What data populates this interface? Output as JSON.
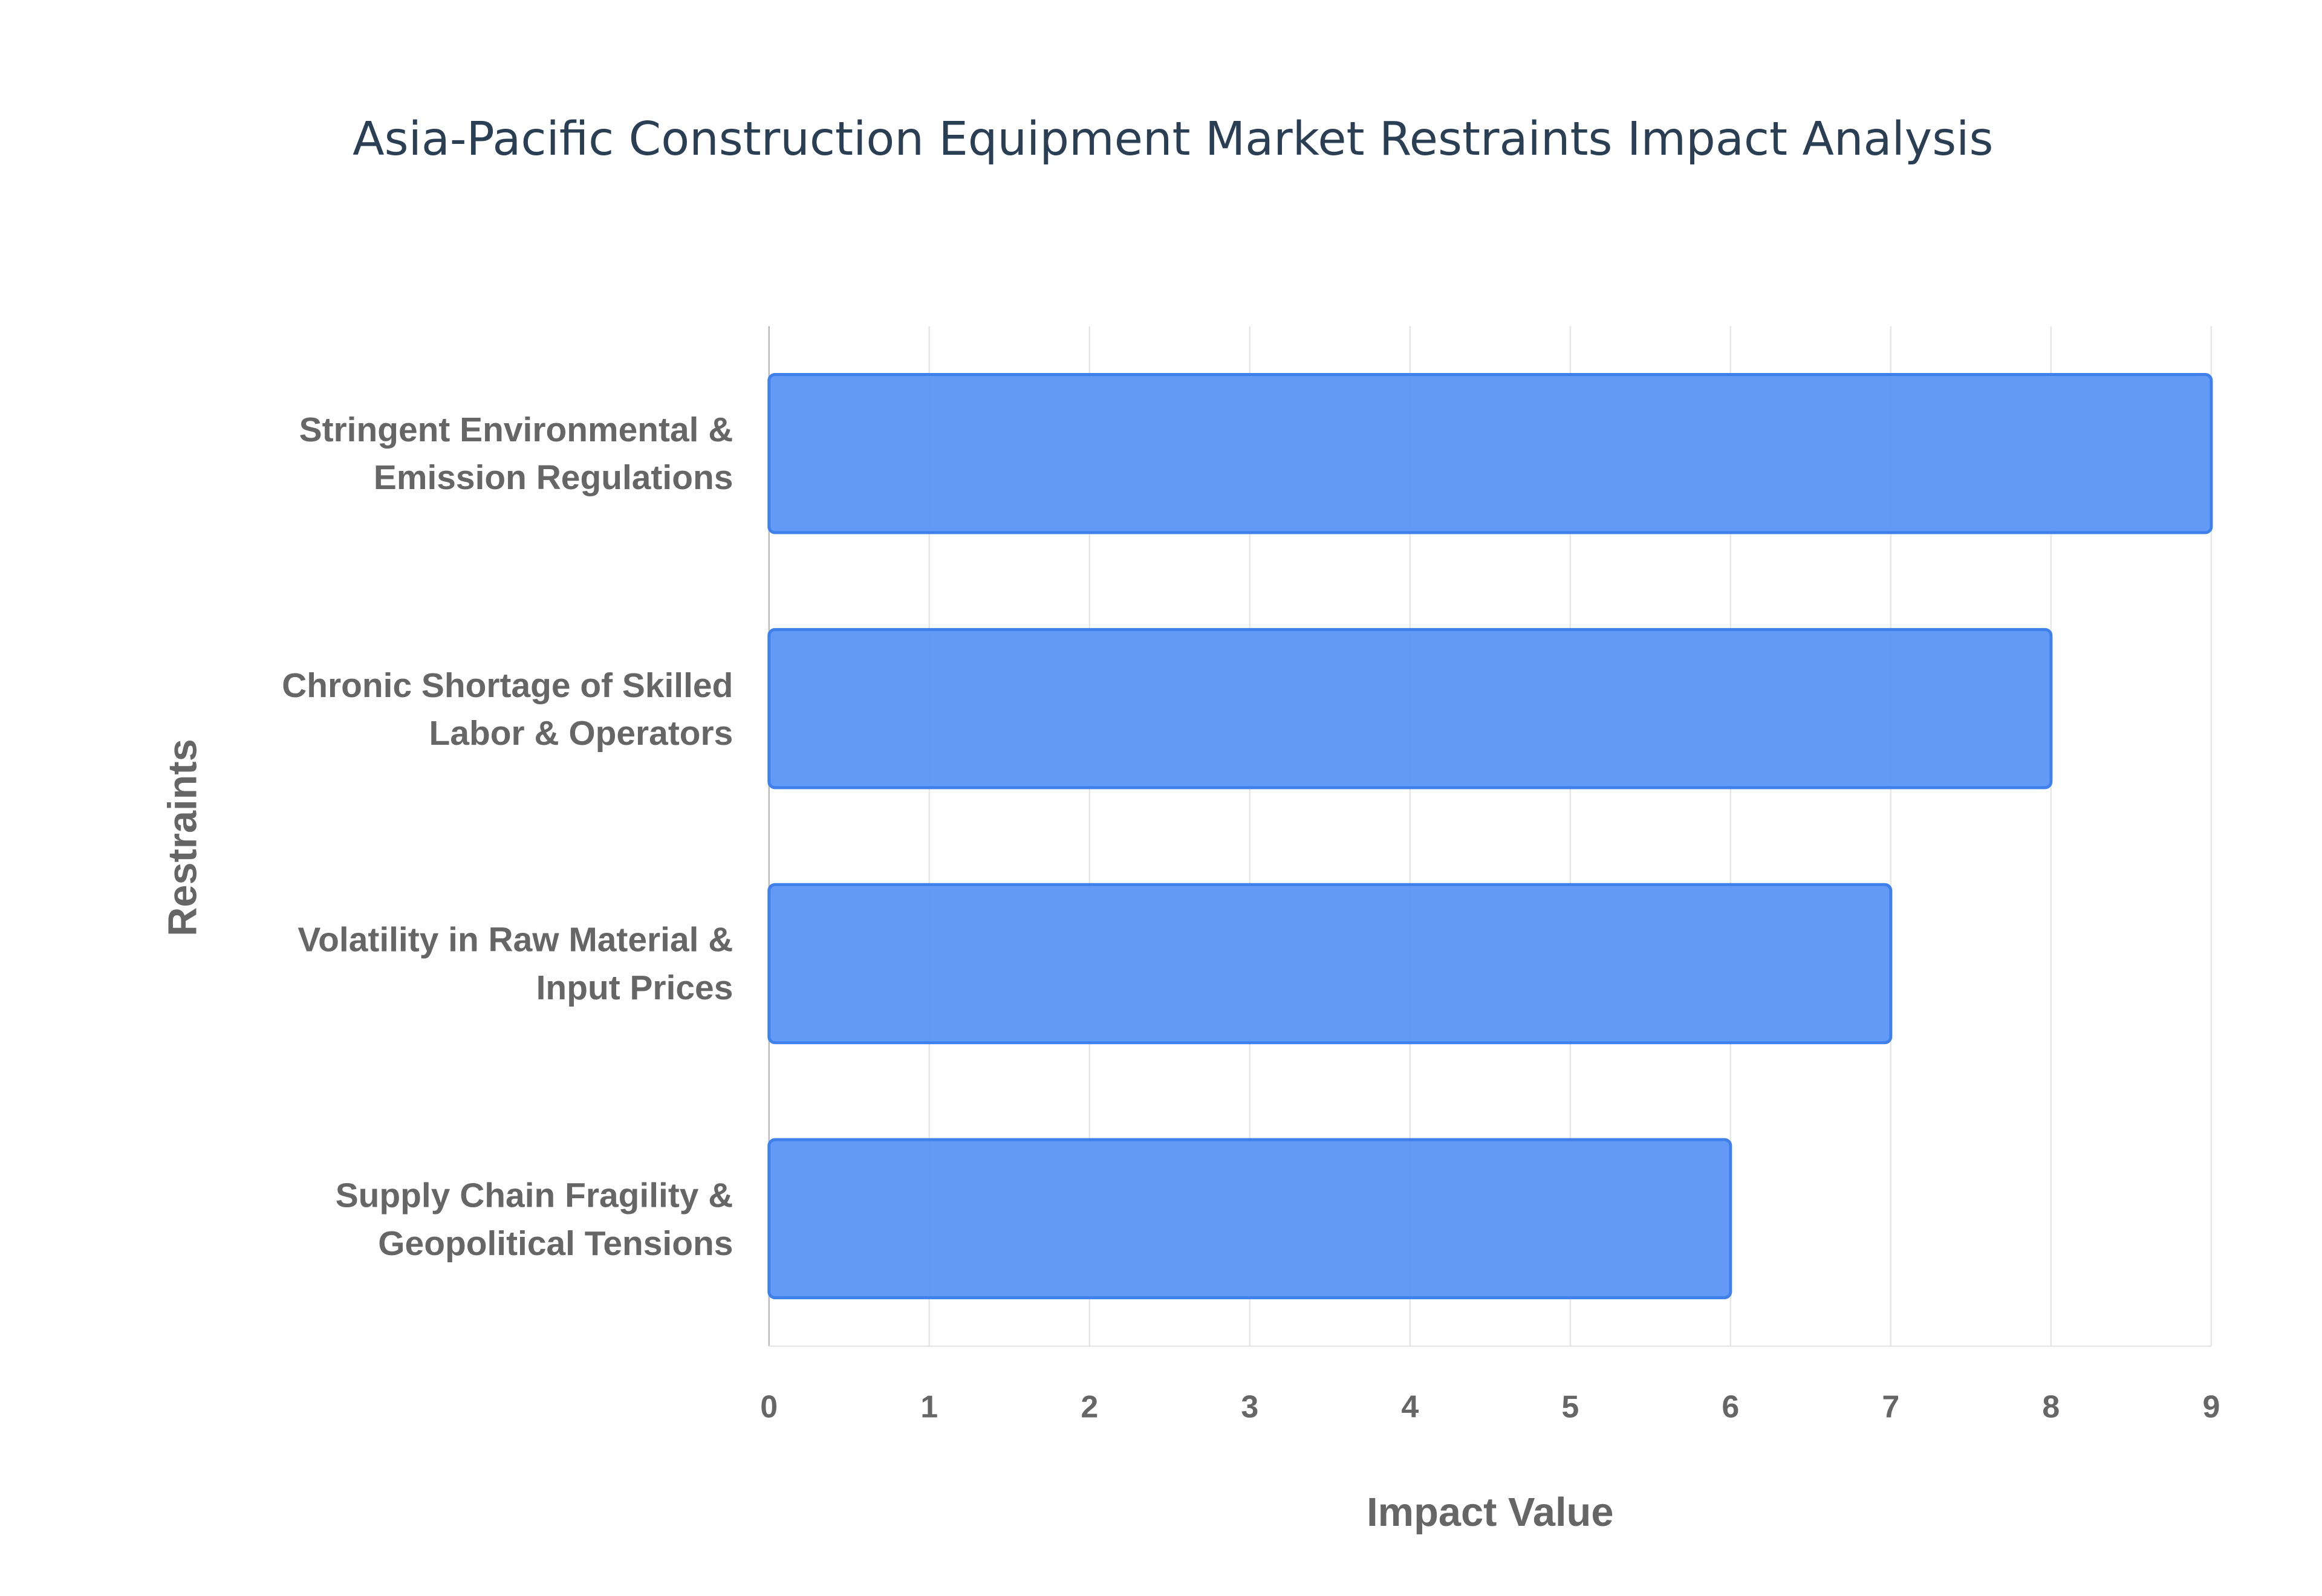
{
  "chart_data": {
    "type": "bar",
    "orientation": "horizontal",
    "title": "Asia-Pacific Construction Equipment Market Restraints Impact Analysis",
    "x_label": "Impact Value",
    "y_label": "Restraints",
    "categories": [
      "Stringent Environmental &\nEmission Regulations",
      "Chronic Shortage of Skilled\nLabor & Operators",
      "Volatility in Raw Material &\nInput Prices",
      "Supply Chain Fragility &\nGeopolitical Tensions"
    ],
    "values": [
      9,
      8,
      7,
      6
    ],
    "color": "#5a95f5",
    "xlim": [
      0,
      9
    ],
    "xticks": [
      0,
      1,
      2,
      3,
      4,
      5,
      6,
      7,
      8,
      9
    ],
    "grid": true
  }
}
